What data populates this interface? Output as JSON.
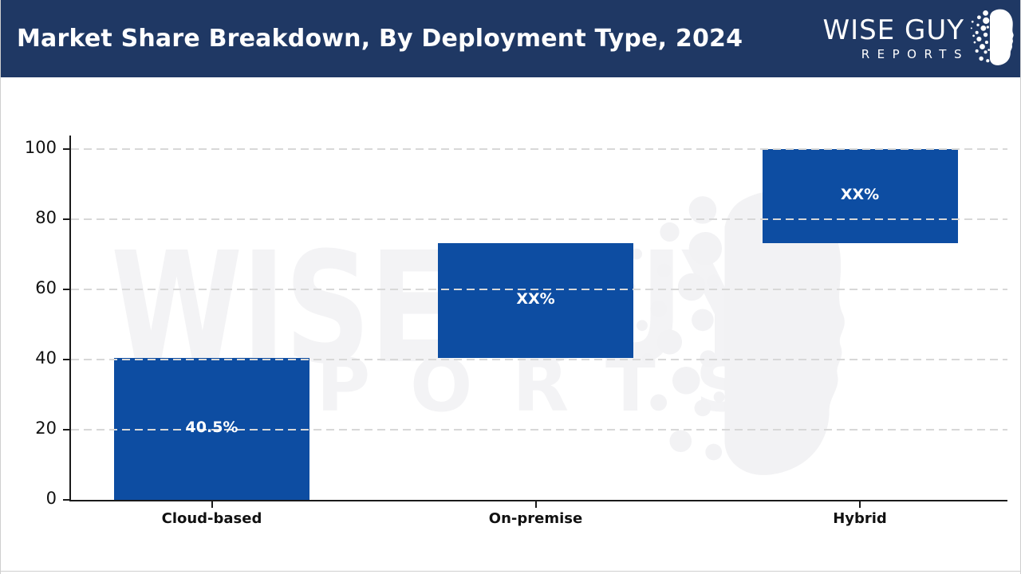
{
  "header": {
    "title": "Market Share Breakdown, By Deployment Type, 2024",
    "logo": {
      "wordmark": "WISE GUY",
      "subtext": "REPORTS"
    }
  },
  "watermark": {
    "wordmark": "WISE GUY",
    "subtext": "REPORTS"
  },
  "colors": {
    "header_bg": "#1F3864",
    "bar_fill": "#0D4DA2",
    "bar_label_text": "#FFFFFF",
    "grid_line": "#D8D8D8",
    "axis_line": "#1A1A1A",
    "tick_text": "#111111",
    "watermark": "#F3F3F5",
    "page_border": "#CFCFCF"
  },
  "chart_data": {
    "type": "bar",
    "subtype": "floating-segment-waterfall",
    "title": "Market Share Breakdown, By Deployment Type, 2024",
    "categories": [
      "Cloud-based",
      "On-premise",
      "Hybrid"
    ],
    "segments": [
      {
        "category": "Cloud-based",
        "start": 0,
        "end": 40.5,
        "label": "40.5%"
      },
      {
        "category": "On-premise",
        "start": 40.5,
        "end": 73,
        "label": "XX%"
      },
      {
        "category": "Hybrid",
        "start": 73,
        "end": 100,
        "label": "XX%"
      }
    ],
    "xlabel": "",
    "ylabel": "",
    "yticks": [
      0,
      20,
      40,
      60,
      80,
      100
    ],
    "ylim": [
      0,
      103.7
    ],
    "grid": "horizontal-dashed",
    "legend": "none"
  }
}
